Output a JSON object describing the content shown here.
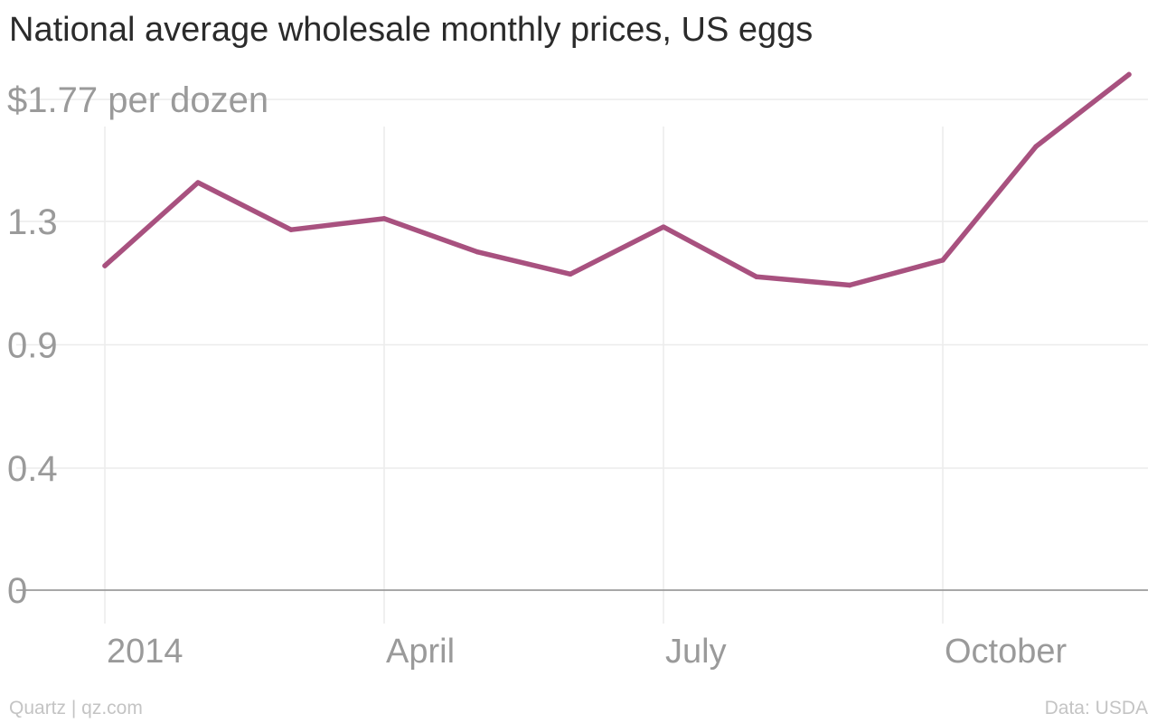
{
  "title": "National average wholesale monthly prices, US eggs",
  "footer": {
    "source_left": "Quartz | qz.com",
    "source_right": "Data: USDA"
  },
  "colors": {
    "line": "#a8517f",
    "grid": "#ececec",
    "axis": "#8c8c8c",
    "tick_text": "#9a9a9a"
  },
  "chart_data": {
    "type": "line",
    "title": "National average wholesale monthly prices, US eggs",
    "x": [
      "2014-01",
      "2014-02",
      "2014-03",
      "2014-04",
      "2014-05",
      "2014-06",
      "2014-07",
      "2014-08",
      "2014-09",
      "2014-10",
      "2014-11",
      "2014-12"
    ],
    "series": [
      {
        "values": [
          1.17,
          1.47,
          1.3,
          1.34,
          1.22,
          1.14,
          1.31,
          1.13,
          1.1,
          1.19,
          1.6,
          1.86
        ]
      }
    ],
    "ylim": [
      0,
      1.77
    ],
    "y_ticks": [
      {
        "value": 0,
        "label": "0"
      },
      {
        "value": 0.44,
        "label": "0.4"
      },
      {
        "value": 0.885,
        "label": "0.9"
      },
      {
        "value": 1.33,
        "label": "1.3"
      },
      {
        "value": 1.77,
        "label": "$1.77 per dozen"
      }
    ],
    "x_ticks": [
      {
        "month": "2014-01",
        "label": "2014"
      },
      {
        "month": "2014-04",
        "label": "April"
      },
      {
        "month": "2014-07",
        "label": "July"
      },
      {
        "month": "2014-10",
        "label": "October"
      }
    ],
    "grid": true
  }
}
